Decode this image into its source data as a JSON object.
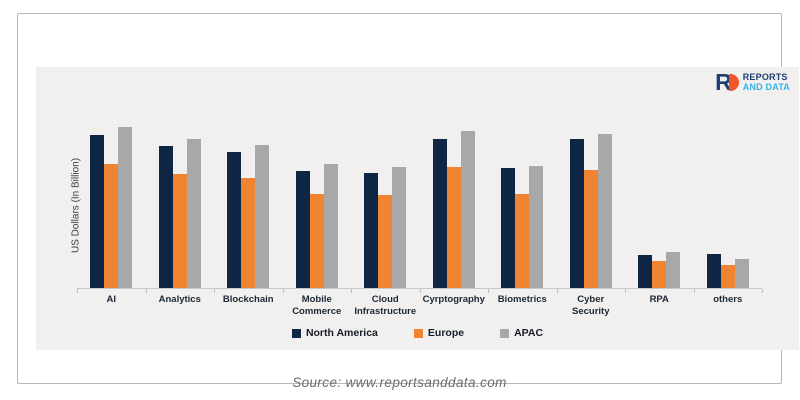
{
  "logo": {
    "monogram": "R",
    "line1": "REPORTS",
    "line2": "AND DATA",
    "navy": "#1e3f6f",
    "light_blue": "#3ab0e6",
    "orange": "#f0562a"
  },
  "chart_data": {
    "type": "bar",
    "title": "",
    "xlabel": "",
    "ylabel": "US Dollars  (In Billion)",
    "categories": [
      "AI",
      "Analytics",
      "Blockchain",
      "Mobile Commerce",
      "Cloud Infrastructure",
      "Cyrptography",
      "Biometrics",
      "Cyber Security",
      "RPA",
      "others"
    ],
    "series": [
      {
        "name": "North America",
        "color": "#0e2644",
        "values": [
          153,
          142,
          136,
          117,
          115,
          149,
          120,
          149,
          33,
          34
        ]
      },
      {
        "name": "Europe",
        "color": "#ef8432",
        "values": [
          124,
          114,
          110,
          94,
          93,
          121,
          94,
          118,
          27,
          23
        ]
      },
      {
        "name": "APAC",
        "color": "#a8a8a8",
        "values": [
          161,
          149,
          143,
          124,
          121,
          157,
          122,
          154,
          36,
          29
        ]
      }
    ],
    "ylim": [
      0,
      170
    ],
    "y_axis_tick_labels_shown": false,
    "grid": false,
    "legend_position": "bottom",
    "units_note": "relative scale estimated from bar heights; no numeric axis labels shown"
  },
  "source": {
    "text": "Source: www.reportsanddata.com"
  }
}
